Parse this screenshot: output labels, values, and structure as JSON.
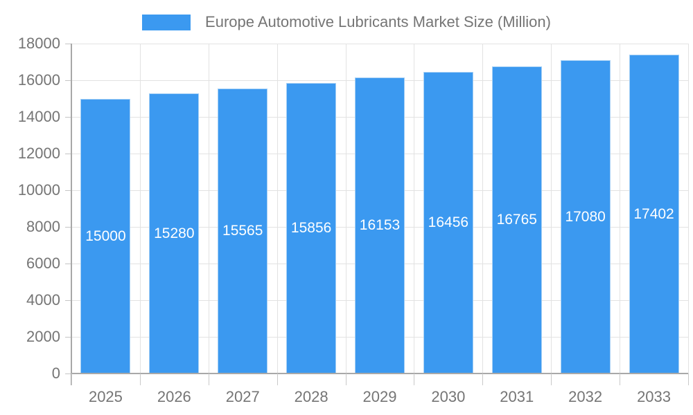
{
  "legend": {
    "label": "Europe Automotive Lubricants Market Size (Million)",
    "swatch_color": "#3b99f0"
  },
  "chart_data": {
    "type": "bar",
    "title": "Europe Automotive Lubricants Market Size (Million)",
    "categories": [
      "2025",
      "2026",
      "2027",
      "2028",
      "2029",
      "2030",
      "2031",
      "2032",
      "2033"
    ],
    "values": [
      15000,
      15280,
      15565,
      15856,
      16153,
      16456,
      16765,
      17080,
      17402
    ],
    "xlabel": "",
    "ylabel": "",
    "ylim": [
      0,
      18000
    ],
    "ytick_step": 2000,
    "ytick_labels": [
      "0",
      "2000",
      "4000",
      "6000",
      "8000",
      "10000",
      "12000",
      "14000",
      "16000",
      "18000"
    ],
    "grid": true,
    "legend_position": "top",
    "bar_label_position": "inside-center"
  },
  "colors": {
    "bar_fill": "#3b99f0",
    "bar_border": "#a6d0f5",
    "bar_label": "#ffffff",
    "gridline": "#e2e2e2",
    "axis_line": "#a8a8a8",
    "axis_text": "#757575"
  }
}
